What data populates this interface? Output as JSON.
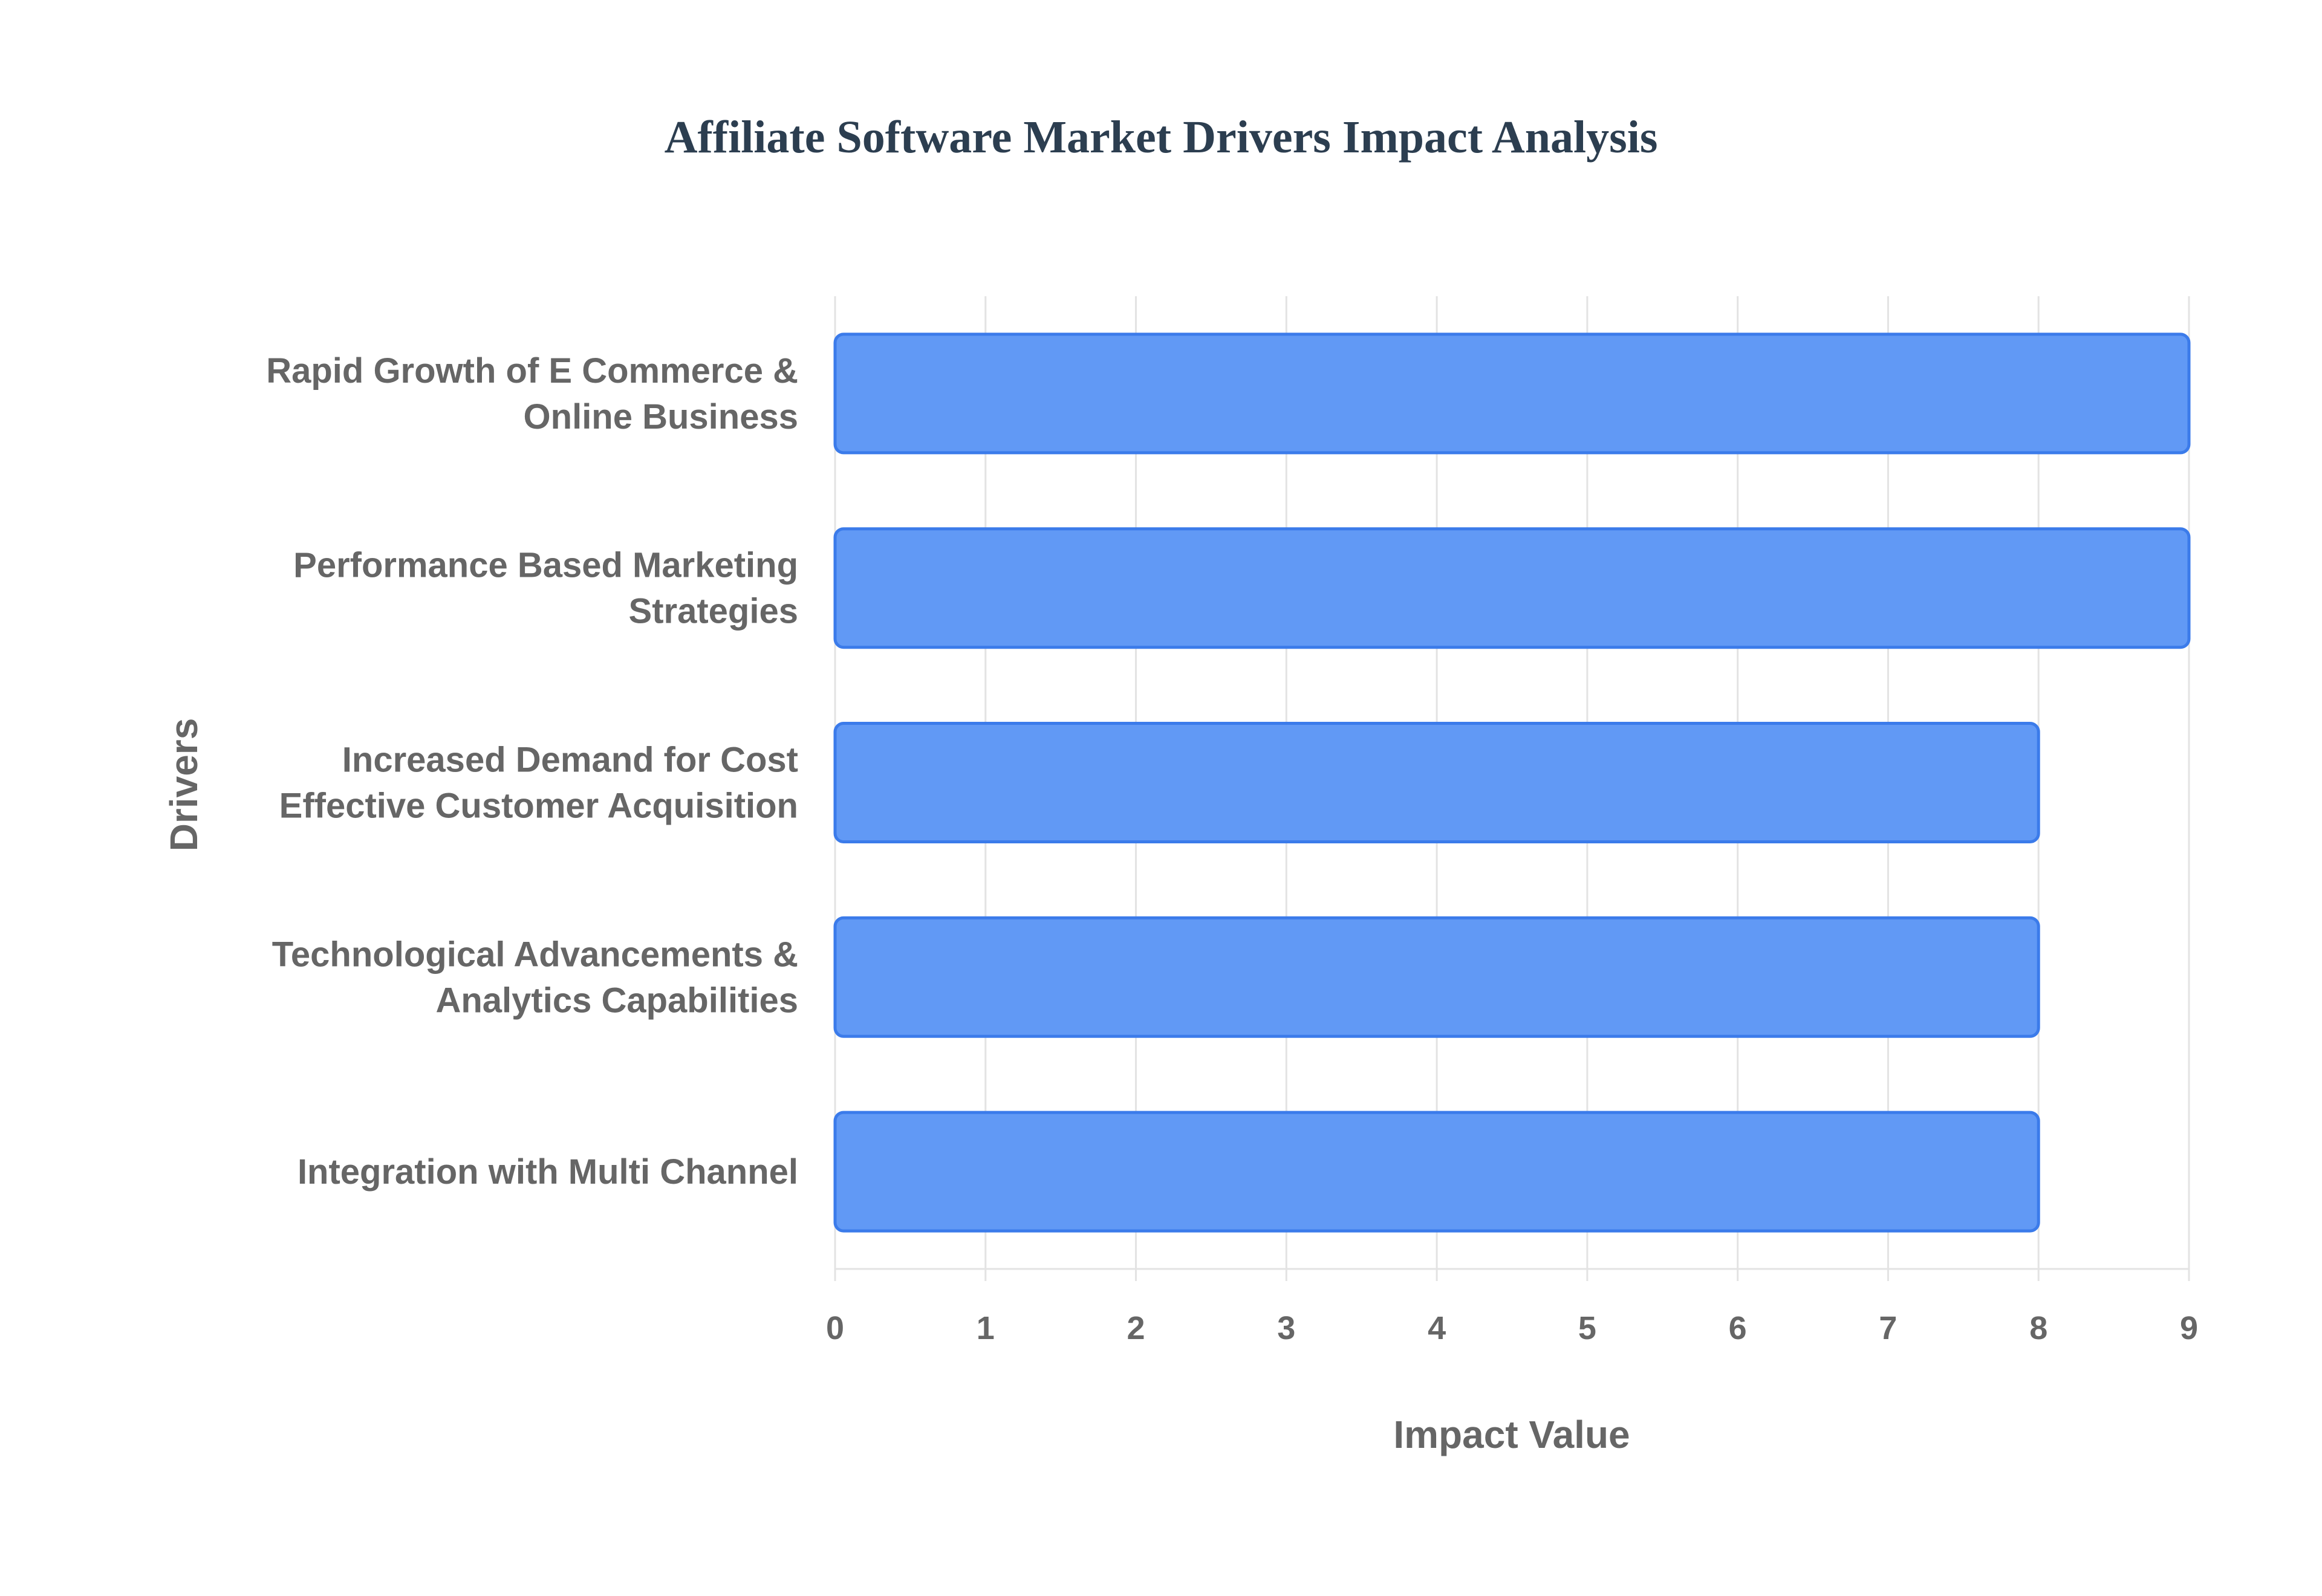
{
  "chart_data": {
    "type": "bar",
    "orientation": "horizontal",
    "title": "Affiliate Software Market Drivers Impact Analysis",
    "xlabel": "Impact Value",
    "ylabel": "Drivers",
    "xlim": [
      0,
      9
    ],
    "xticks": [
      "0",
      "1",
      "2",
      "3",
      "4",
      "5",
      "6",
      "7",
      "8",
      "9"
    ],
    "grid": true,
    "categories": [
      [
        "Rapid Growth of E Commerce &",
        "Online Business"
      ],
      [
        "Performance Based Marketing",
        "Strategies"
      ],
      [
        "Increased Demand for Cost",
        "Effective Customer Acquisition"
      ],
      [
        "Technological Advancements &",
        "Analytics Capabilities"
      ],
      [
        "Integration with Multi Channel"
      ]
    ],
    "values": [
      9,
      9,
      8,
      8,
      8
    ],
    "bar_color": "#6199f5",
    "bar_border": "#3b7bea"
  }
}
